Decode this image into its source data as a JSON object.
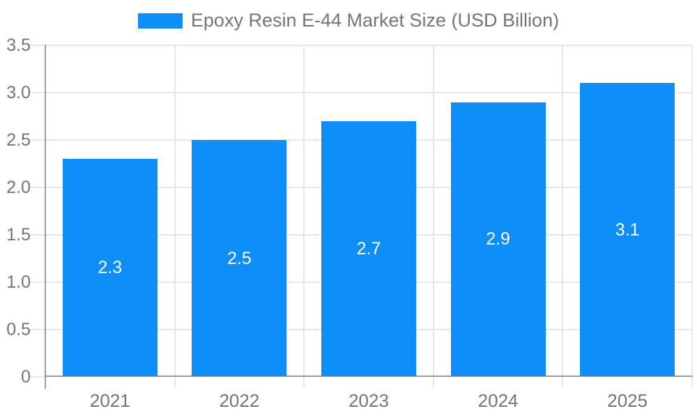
{
  "chart_data": {
    "type": "bar",
    "title": "Epoxy Resin E-44 Market Size (USD Billion)",
    "legend_entries": [
      "Epoxy Resin E-44 Market Size (USD Billion)"
    ],
    "legend_position": "top-center",
    "categories": [
      "2021",
      "2022",
      "2023",
      "2024",
      "2025"
    ],
    "values": [
      2.3,
      2.5,
      2.7,
      2.9,
      3.1
    ],
    "bar_value_labels": [
      "2.3",
      "2.5",
      "2.7",
      "2.9",
      "3.1"
    ],
    "xlabel": "",
    "ylabel": "",
    "ylim": [
      0,
      3.5
    ],
    "ytick_values": [
      0,
      0.5,
      1,
      1.5,
      2,
      2.5,
      3,
      3.5
    ],
    "ytick_labels": [
      "0",
      "0.5",
      "1.0",
      "1.5",
      "2.0",
      "2.5",
      "3.0",
      "3.5"
    ],
    "grid": true,
    "colors": {
      "bar": "#0d8ef8",
      "bar_label_text": "#ffffff",
      "tick_text": "#757575",
      "legend_text": "#757575",
      "gridline": "#e6e6e6",
      "axis_line": "#9b9b9b"
    }
  }
}
